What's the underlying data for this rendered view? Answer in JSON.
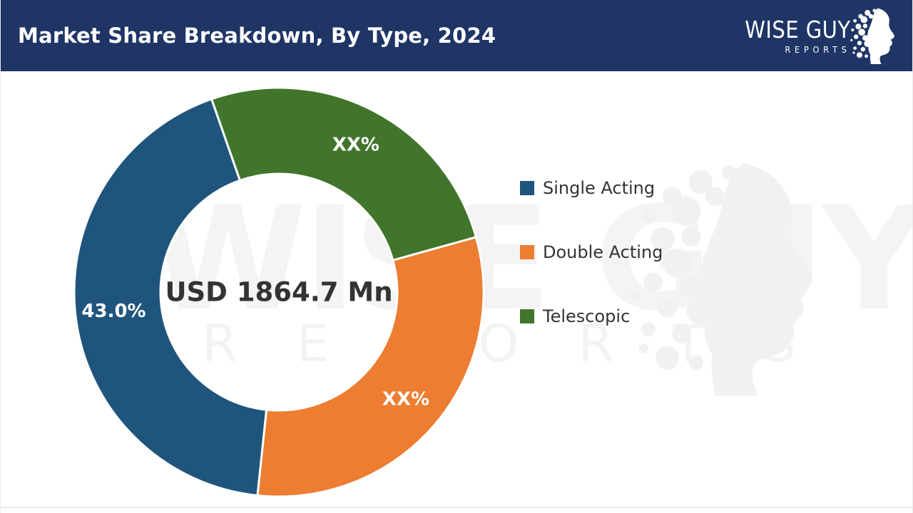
{
  "header": {
    "title": "Market Share Breakdown, By Type, 2024",
    "logo": {
      "line1": "WISE GUY",
      "line2": "REPORTS"
    }
  },
  "chart_data": {
    "type": "pie",
    "subtype": "donut",
    "title": "Market Share Breakdown, By Type, 2024",
    "center_label": "USD 1864.7 Mn",
    "start_angle_deg": 186,
    "direction": "clockwise",
    "segments": [
      {
        "name": "Single Acting",
        "display_label": "43.0%",
        "percent": 43.0,
        "color": "#1f557d",
        "percent_estimated": false
      },
      {
        "name": "Telescopic",
        "display_label": "XX%",
        "percent": 26.0,
        "color": "#41752b",
        "percent_estimated": true
      },
      {
        "name": "Double Acting",
        "display_label": "XX%",
        "percent": 31.0,
        "color": "#ec7d31",
        "percent_estimated": true
      }
    ],
    "legend_position": "right"
  },
  "legend": {
    "items": [
      {
        "label": "Single Acting",
        "color": "#1f557d"
      },
      {
        "label": "Double Acting",
        "color": "#ec7d31"
      },
      {
        "label": "Telescopic",
        "color": "#41752b"
      }
    ]
  },
  "watermark": {
    "line1": "WISE GUY",
    "line2": "R E P O R T S"
  },
  "colors": {
    "header_bg": "#1f3566",
    "header_text": "#ffffff",
    "center_text": "#333333",
    "segment_label_text": "#ffffff",
    "legend_text": "#333333",
    "watermark": "#f4f4f4",
    "footer_rule": "#d8d8d8"
  }
}
